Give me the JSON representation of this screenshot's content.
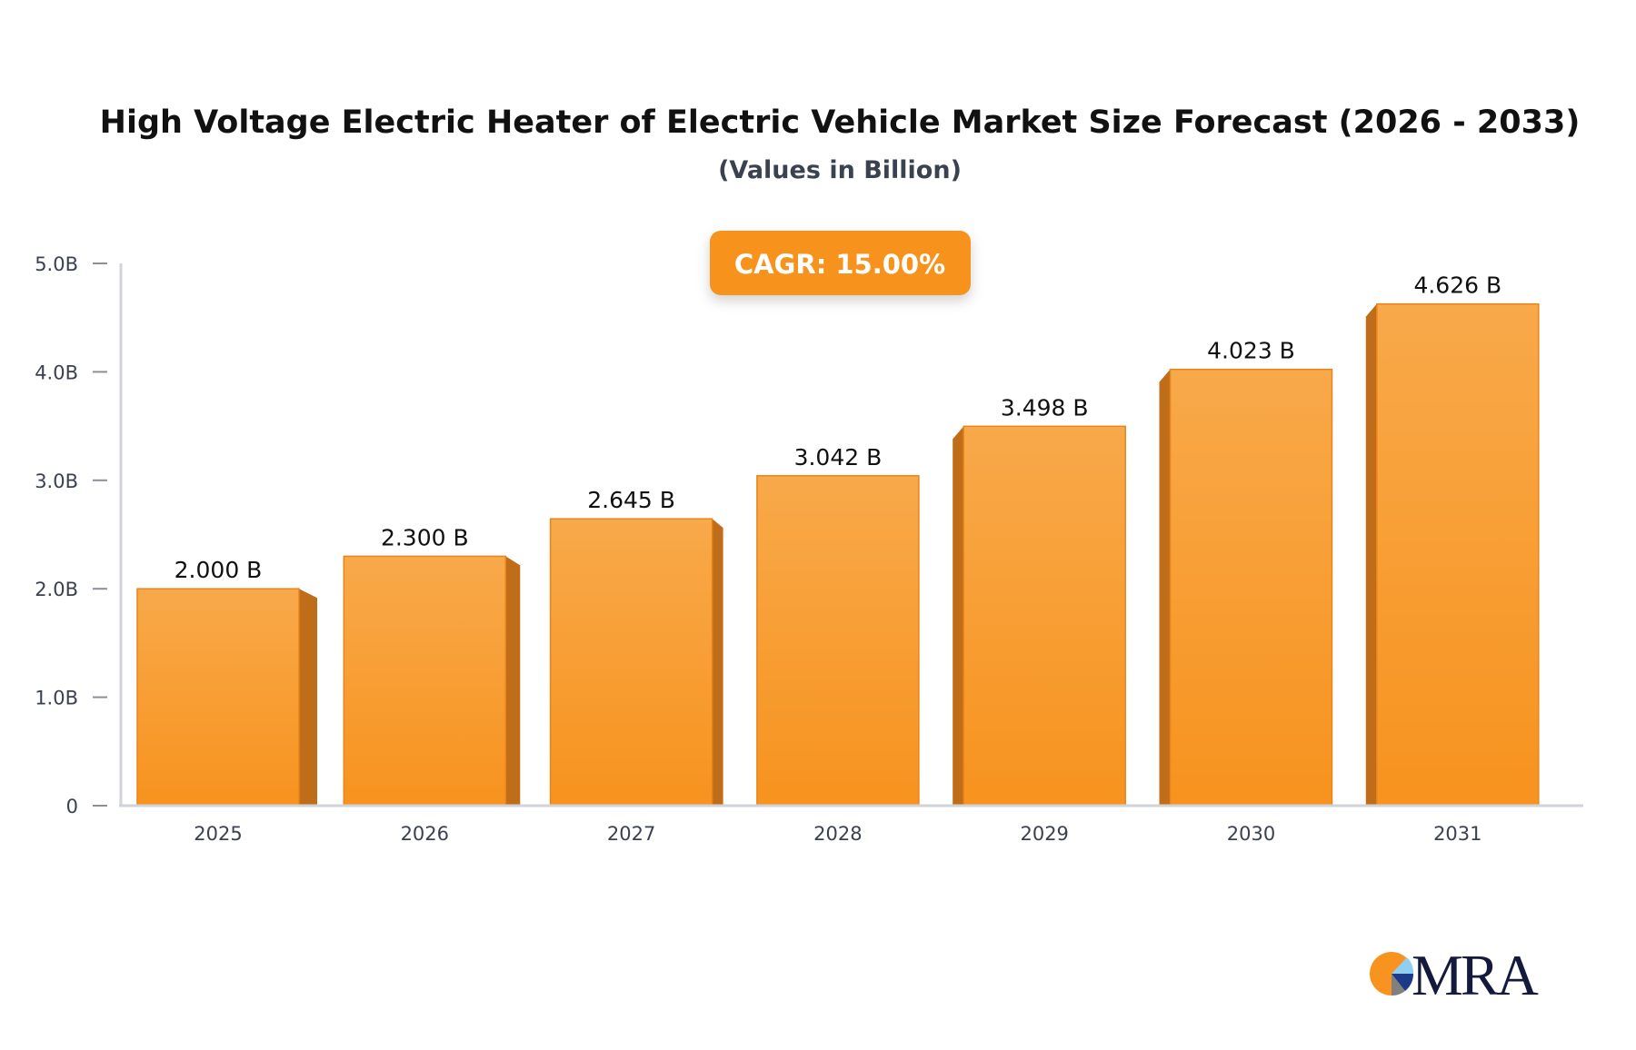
{
  "chart_data": {
    "type": "bar",
    "title": "High Voltage Electric Heater of Electric Vehicle Market Size Forecast (2026 - 2033)",
    "subtitle": "(Values in Billion)",
    "categories": [
      "2025",
      "2026",
      "2027",
      "2028",
      "2029",
      "2030",
      "2031"
    ],
    "values": [
      2.0,
      2.3,
      2.645,
      3.042,
      3.498,
      4.023,
      4.626
    ],
    "data_labels": [
      "2.000 B",
      "2.300 B",
      "2.645 B",
      "3.042 B",
      "3.498 B",
      "4.023 B",
      "4.626 B"
    ],
    "ylim": [
      0,
      5
    ],
    "yticks": [
      0,
      1,
      2,
      3,
      4,
      5
    ],
    "ytick_labels": [
      "0",
      "1.0B",
      "2.0B",
      "3.0B",
      "4.0B",
      "5.0B"
    ],
    "xlabel": "",
    "ylabel": "",
    "grid": false,
    "annotation": "CAGR: 15.00%",
    "colors": {
      "bar_top": "#f8a94a",
      "bar_bottom": "#f7931e",
      "bar_side": "#c06d19",
      "badge": "#f7931e",
      "axis": "#d0d3da"
    }
  },
  "logo": {
    "text": "MRA"
  }
}
